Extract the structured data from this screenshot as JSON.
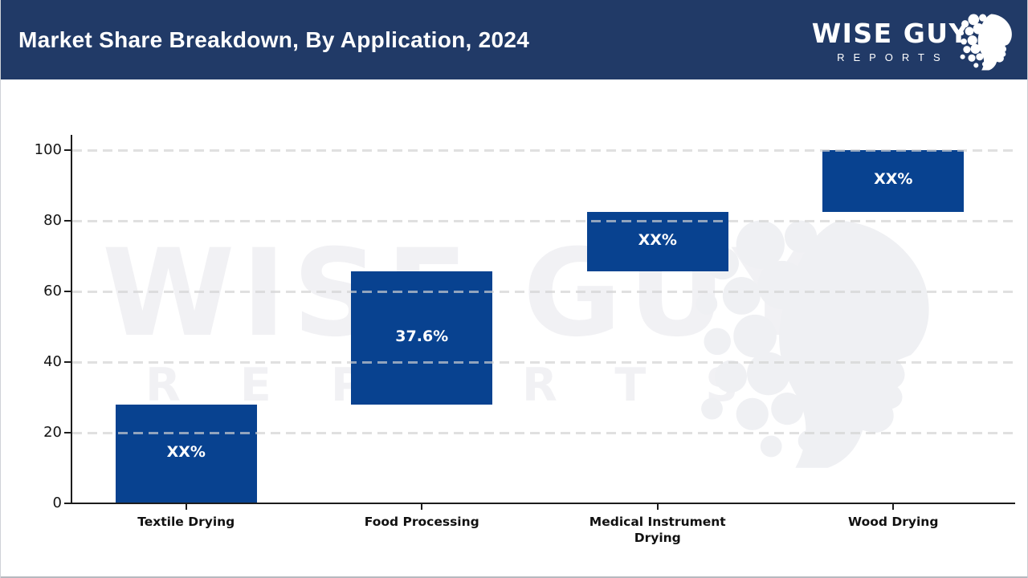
{
  "header": {
    "title": "Market Share Breakdown, By Application, 2024",
    "bg_color": "#213a67",
    "logo": {
      "line1": "WISE GUY",
      "line2": "REPORTS"
    }
  },
  "watermark": {
    "line1": "WISE GUY",
    "line2": "REPORTS"
  },
  "chart_data": {
    "type": "bar",
    "subtype": "waterfall",
    "title": "Market Share Breakdown, By Application, 2024",
    "unit": "%",
    "categories": [
      "Textile Drying",
      "Food Processing",
      "Medical Instrument Drying",
      "Wood Drying"
    ],
    "segments": [
      {
        "category": "Textile Drying",
        "start": 0,
        "end": 28,
        "label": "XX%"
      },
      {
        "category": "Food Processing",
        "start": 28,
        "end": 65.6,
        "label": "37.6%"
      },
      {
        "category": "Medical Instrument Drying",
        "start": 65.6,
        "end": 82.6,
        "label": "XX%"
      },
      {
        "category": "Wood Drying",
        "start": 82.6,
        "end": 100,
        "label": "XX%"
      }
    ],
    "yticks": [
      0,
      20,
      40,
      60,
      80,
      100
    ],
    "ylim": [
      0,
      104
    ],
    "grid": {
      "horizontal": true,
      "style": "dashed",
      "color": "#dcdcdc"
    },
    "legend": "none",
    "bar_color": "#084290",
    "bar_label_color": "#ffffff",
    "axis_color": "#1c1c1c"
  }
}
